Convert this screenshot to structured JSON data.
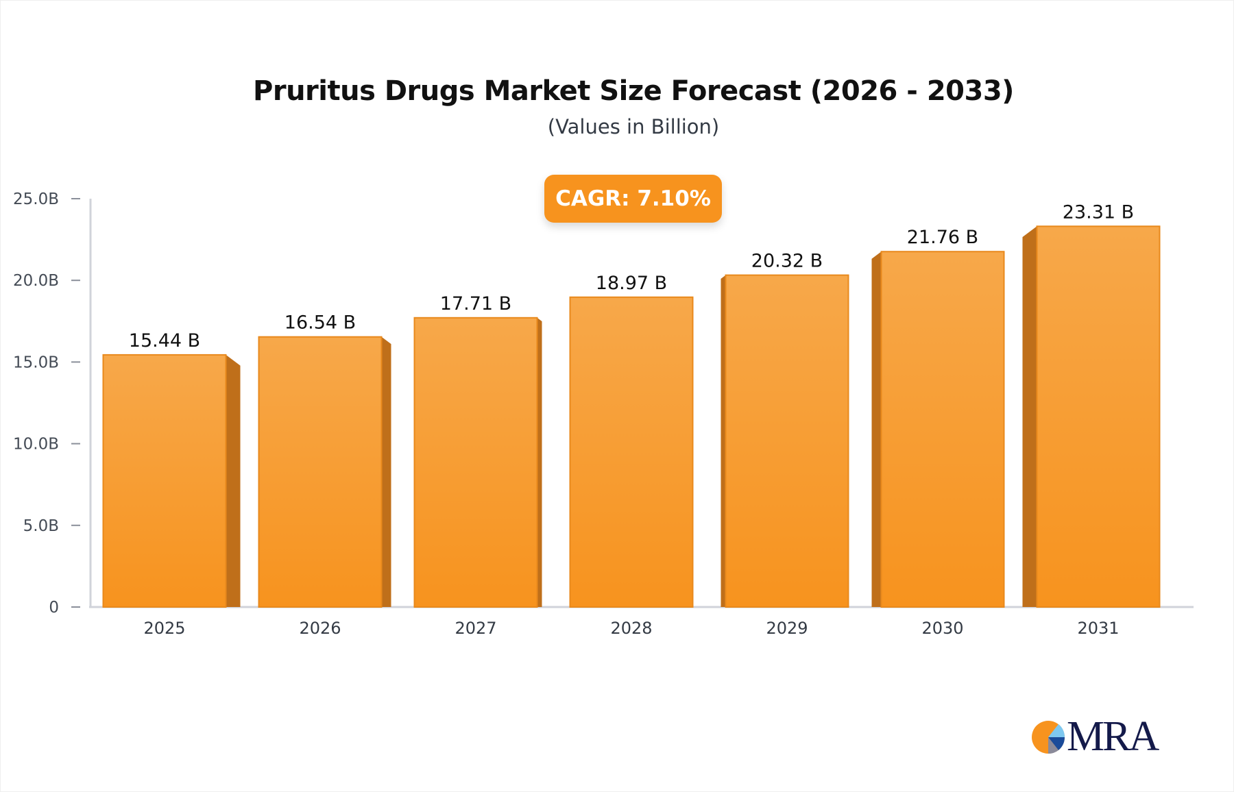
{
  "chart_data": {
    "type": "bar",
    "title": "Pruritus Drugs Market Size Forecast (2026 - 2033)",
    "subtitle": "(Values in Billion)",
    "categories": [
      "2025",
      "2026",
      "2027",
      "2028",
      "2029",
      "2030",
      "2031"
    ],
    "values": [
      15.44,
      16.54,
      17.71,
      18.97,
      20.32,
      21.76,
      23.31
    ],
    "data_labels": [
      "15.44 B",
      "16.54 B",
      "17.71 B",
      "18.97 B",
      "20.32 B",
      "21.76 B",
      "23.31 B"
    ],
    "yticks": [
      "0",
      "5.0B",
      "10.0B",
      "15.0B",
      "20.0B",
      "25.0B"
    ],
    "ylim": [
      0,
      25
    ],
    "grid": false,
    "bar_color": "#f7931e",
    "annotation": "CAGR: 7.10%"
  },
  "logo": {
    "text": "MRA"
  }
}
